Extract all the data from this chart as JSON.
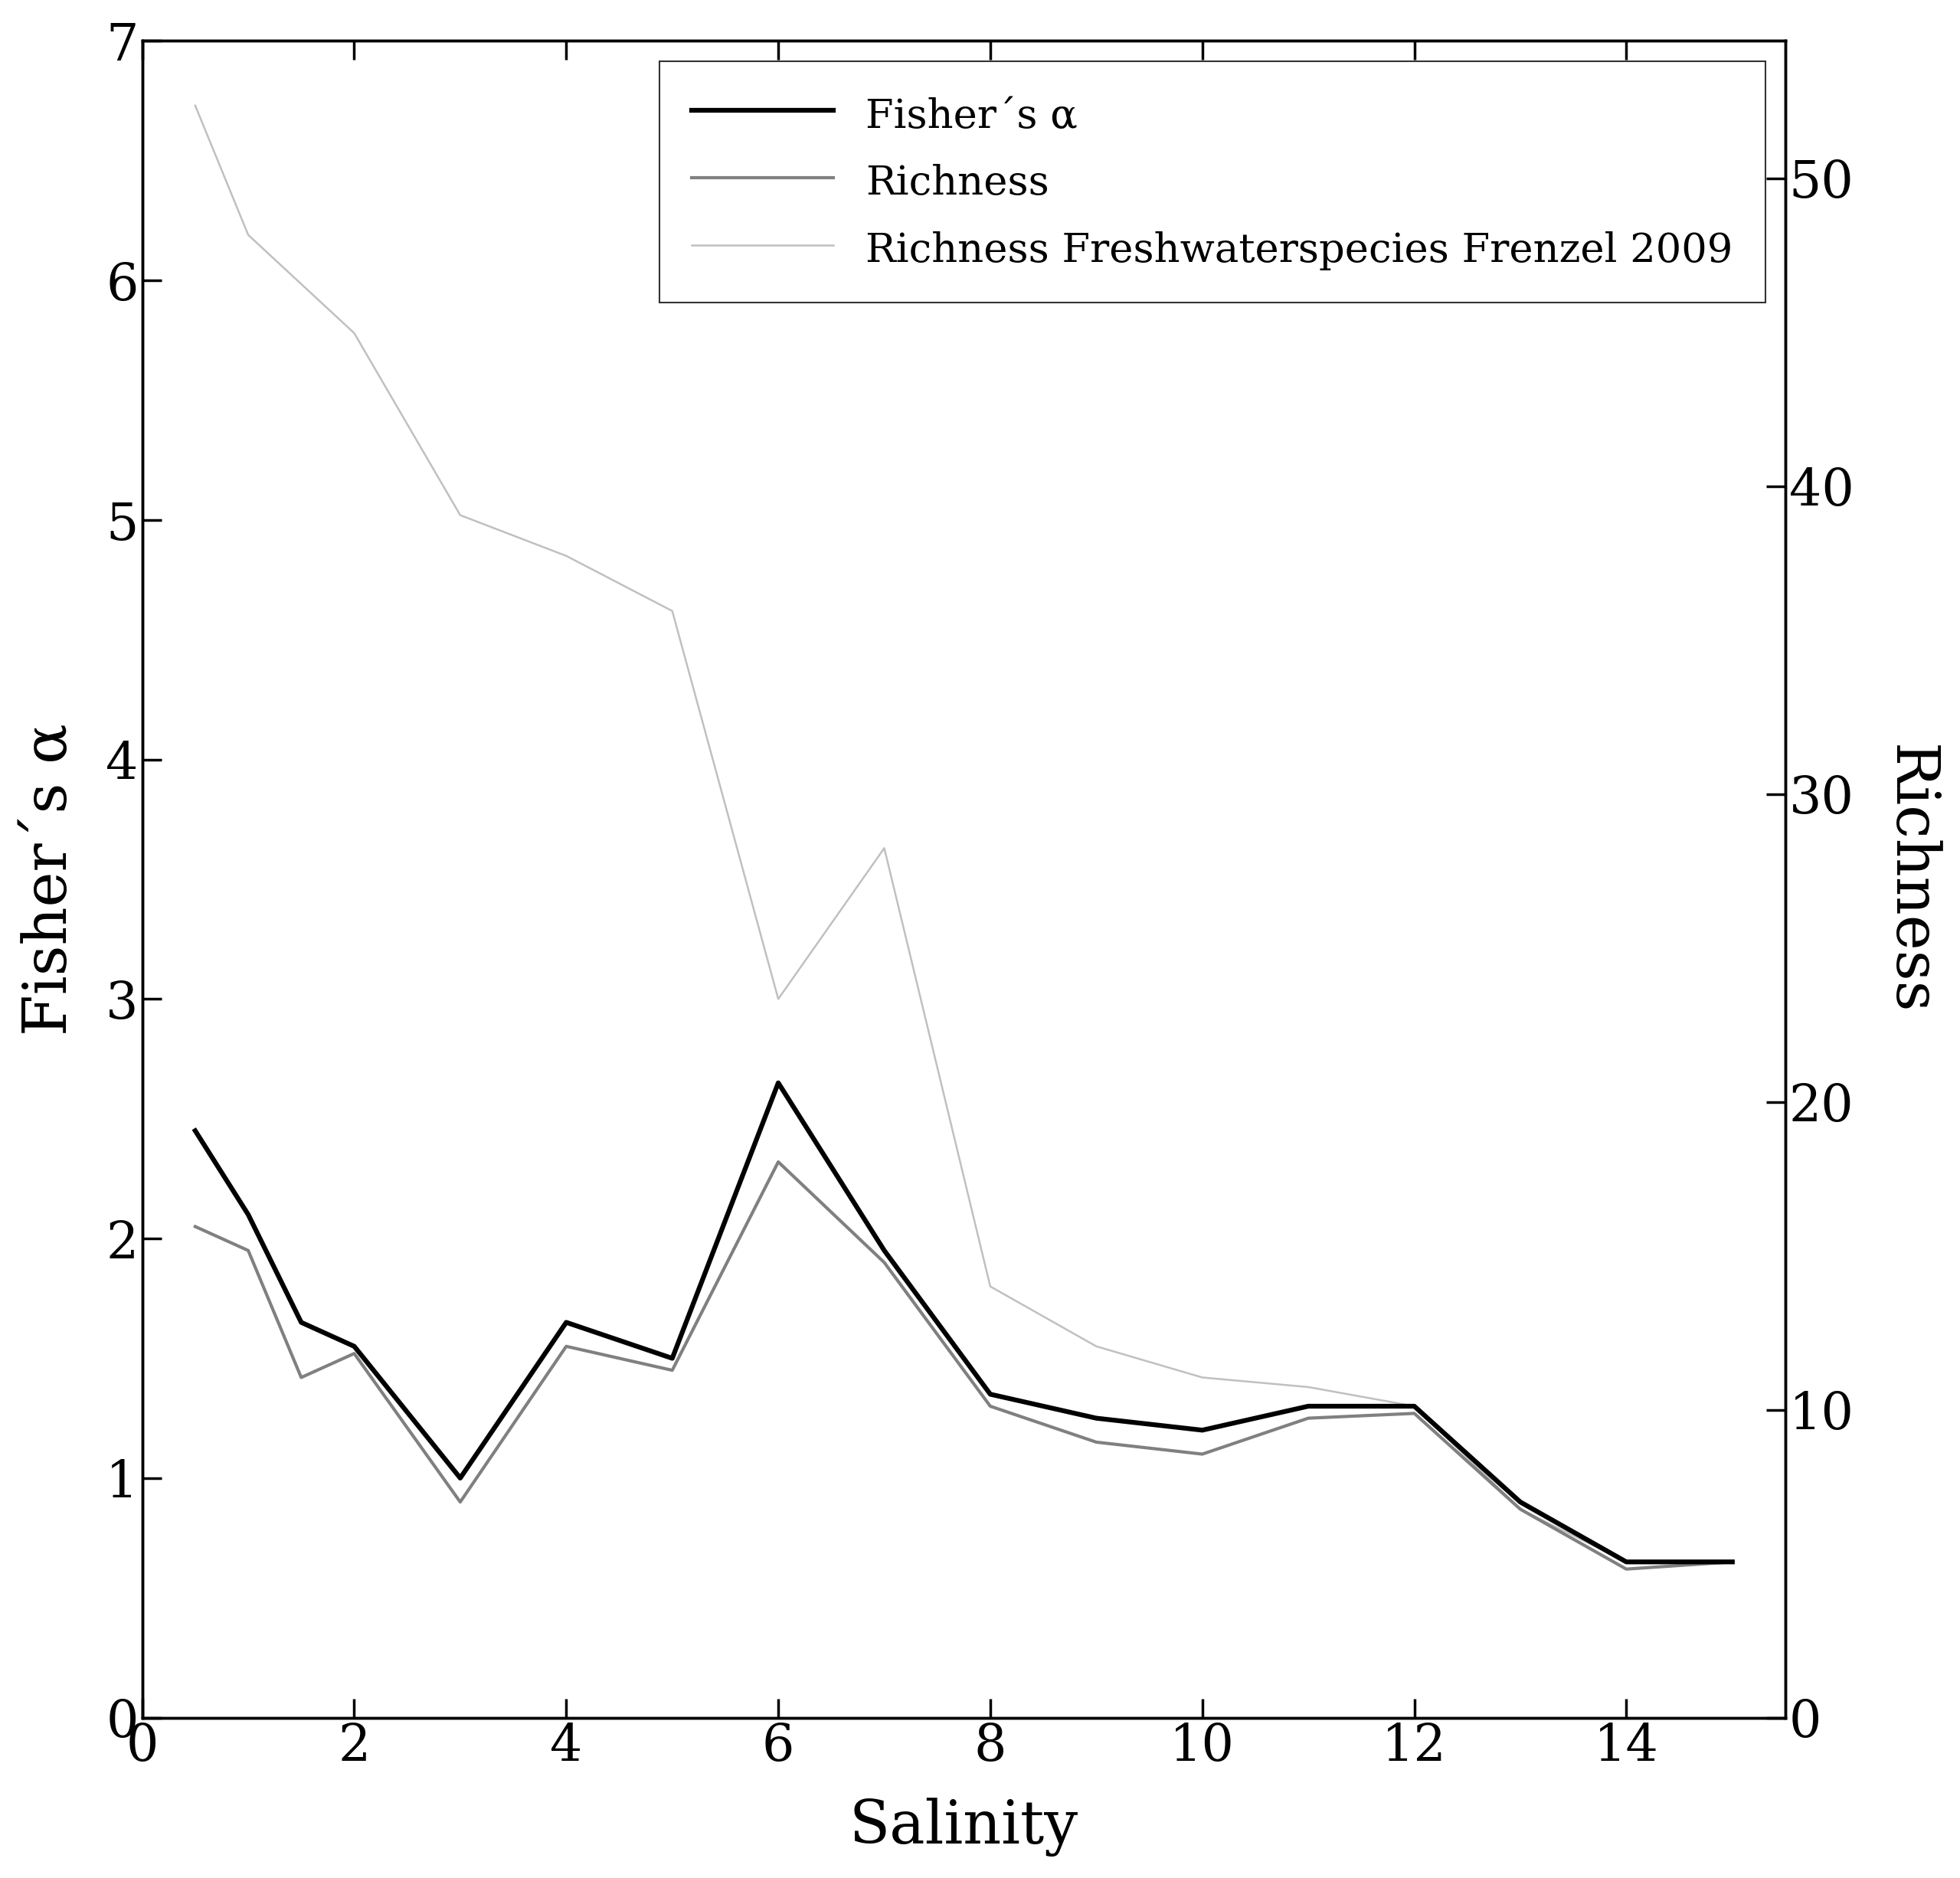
{
  "fisher_alpha_x": [
    0.5,
    1.0,
    1.5,
    2.0,
    3.0,
    4.0,
    5.0,
    6.0,
    7.0,
    8.0,
    9.0,
    10.0,
    11.0,
    12.0,
    13.0,
    14.0,
    15.0
  ],
  "fisher_alpha_y": [
    2.45,
    2.1,
    1.65,
    1.55,
    1.0,
    1.65,
    1.5,
    2.65,
    1.95,
    1.35,
    1.25,
    1.2,
    1.3,
    1.3,
    0.9,
    0.65,
    0.65
  ],
  "richness_x": [
    0.5,
    1.0,
    1.5,
    2.0,
    3.0,
    4.0,
    5.0,
    6.0,
    7.0,
    8.0,
    9.0,
    10.0,
    11.0,
    12.0,
    13.0,
    14.0,
    15.0
  ],
  "richness_y": [
    2.05,
    1.95,
    1.42,
    1.52,
    0.9,
    1.55,
    1.45,
    2.32,
    1.9,
    1.3,
    1.15,
    1.1,
    1.25,
    1.27,
    0.87,
    0.62,
    0.65
  ],
  "frenzel_x": [
    0.5,
    1.0,
    2.0,
    3.0,
    4.0,
    5.0,
    6.0,
    7.0,
    8.0,
    9.0,
    10.0,
    11.0,
    12.0,
    13.0,
    14.0,
    15.0
  ],
  "frenzel_y": [
    6.73,
    6.19,
    5.78,
    5.02,
    4.85,
    4.62,
    3.0,
    3.63,
    1.8,
    1.55,
    1.42,
    1.38,
    1.3,
    0.87,
    0.65,
    0.65
  ],
  "left_ylabel": "Fisher´s α",
  "right_ylabel": "Richness",
  "xlabel": "Salinity",
  "xlim": [
    0,
    15.5
  ],
  "ylim_left": [
    0,
    7
  ],
  "ylim_right": [
    0,
    54.46
  ],
  "xticks": [
    0,
    2,
    4,
    6,
    8,
    10,
    12,
    14
  ],
  "yticks_left": [
    0,
    1,
    2,
    3,
    4,
    5,
    6,
    7
  ],
  "yticks_right": [
    0,
    10,
    20,
    30,
    40,
    50
  ],
  "legend_labels": [
    "Fisher´s α",
    "Richness",
    "Richness Freshwaterspecies Frenzel 2009"
  ],
  "fisher_color": "#000000",
  "richness_color": "#808080",
  "frenzel_color": "#c0c0c0",
  "fisher_lw": 4.5,
  "richness_lw": 3.0,
  "frenzel_lw": 1.8,
  "background_color": "#ffffff",
  "font_family": "DejaVu Serif"
}
